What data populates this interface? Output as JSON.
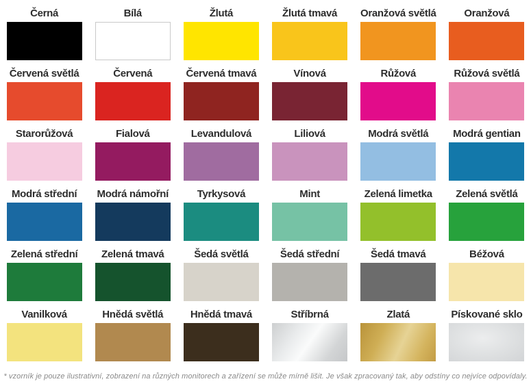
{
  "chart_data": {
    "type": "table",
    "columns": 6,
    "rows": 6,
    "items": [
      {
        "label": "Černá",
        "background": "#000000"
      },
      {
        "label": "Bílá",
        "background": "#ffffff",
        "border": "#c9c9c9"
      },
      {
        "label": "Žlutá",
        "background": "#ffe500"
      },
      {
        "label": "Žlutá tmavá",
        "background": "#f9c51b"
      },
      {
        "label": "Oranžová světlá",
        "background": "#f1951f"
      },
      {
        "label": "Oranžová",
        "background": "#e85d1f"
      },
      {
        "label": "Červená světlá",
        "background": "#e64b2d"
      },
      {
        "label": "Červená",
        "background": "#da2420"
      },
      {
        "label": "Červená tmavá",
        "background": "#8f2420"
      },
      {
        "label": "Vínová",
        "background": "#792433"
      },
      {
        "label": "Růžová",
        "background": "#e20c8a"
      },
      {
        "label": "Růžová světlá",
        "background": "#ea84b0"
      },
      {
        "label": "Starorůžová",
        "background": "#f6cce0"
      },
      {
        "label": "Fialová",
        "background": "#941b60"
      },
      {
        "label": "Levandulová",
        "background": "#a06ca0"
      },
      {
        "label": "Liliová",
        "background": "#c993bd"
      },
      {
        "label": "Modrá světlá",
        "background": "#93bee2"
      },
      {
        "label": "Modrá gentian",
        "background": "#1378aa"
      },
      {
        "label": "Modrá střední",
        "background": "#1a69a2"
      },
      {
        "label": "Modrá námořní",
        "background": "#143a5d"
      },
      {
        "label": "Tyrkysová",
        "background": "#1b8c80"
      },
      {
        "label": "Mint",
        "background": "#76c2a5"
      },
      {
        "label": "Zelená limetka",
        "background": "#93c02b"
      },
      {
        "label": "Zelená světlá",
        "background": "#27a23c"
      },
      {
        "label": "Zelená střední",
        "background": "#1e7b3b"
      },
      {
        "label": "Zelená tmavá",
        "background": "#15532d"
      },
      {
        "label": "Šedá světlá",
        "background": "#d7d3ca"
      },
      {
        "label": "Šedá střední",
        "background": "#b4b2ad"
      },
      {
        "label": "Šedá tmavá",
        "background": "#6c6c6c"
      },
      {
        "label": "Béžová",
        "background": "#f6e5ab"
      },
      {
        "label": "Vanilková",
        "background": "#f3e37e"
      },
      {
        "label": "Hnědá světlá",
        "background": "#b1894f"
      },
      {
        "label": "Hnědá tmavá",
        "background": "#3c2e1d"
      },
      {
        "label": "Stříbrná",
        "background": "linear-gradient(125deg, #cdcfd0 0%, #e9ebec 30%, #fafbfb 50%, #d3d5d6 78%, #c5c7c9 100%)"
      },
      {
        "label": "Zlatá",
        "background": "linear-gradient(115deg, #b9933a 0%, #cfae55 28%, #e6d395 55%, #d4b45e 80%, #c39c44 100%)"
      },
      {
        "label": "Pískované sklo",
        "background": "radial-gradient(ellipse at 45% 40%, #ecedee 0%, #e0e2e3 45%, #d2d4d6 100%)"
      }
    ],
    "footnote": "* vzorník je pouze ilustrativní, zobrazení na různých monitorech a zařízení se může mírně lišit. Je však zpracovaný tak, aby odstíny co nejvíce odpovídaly."
  }
}
